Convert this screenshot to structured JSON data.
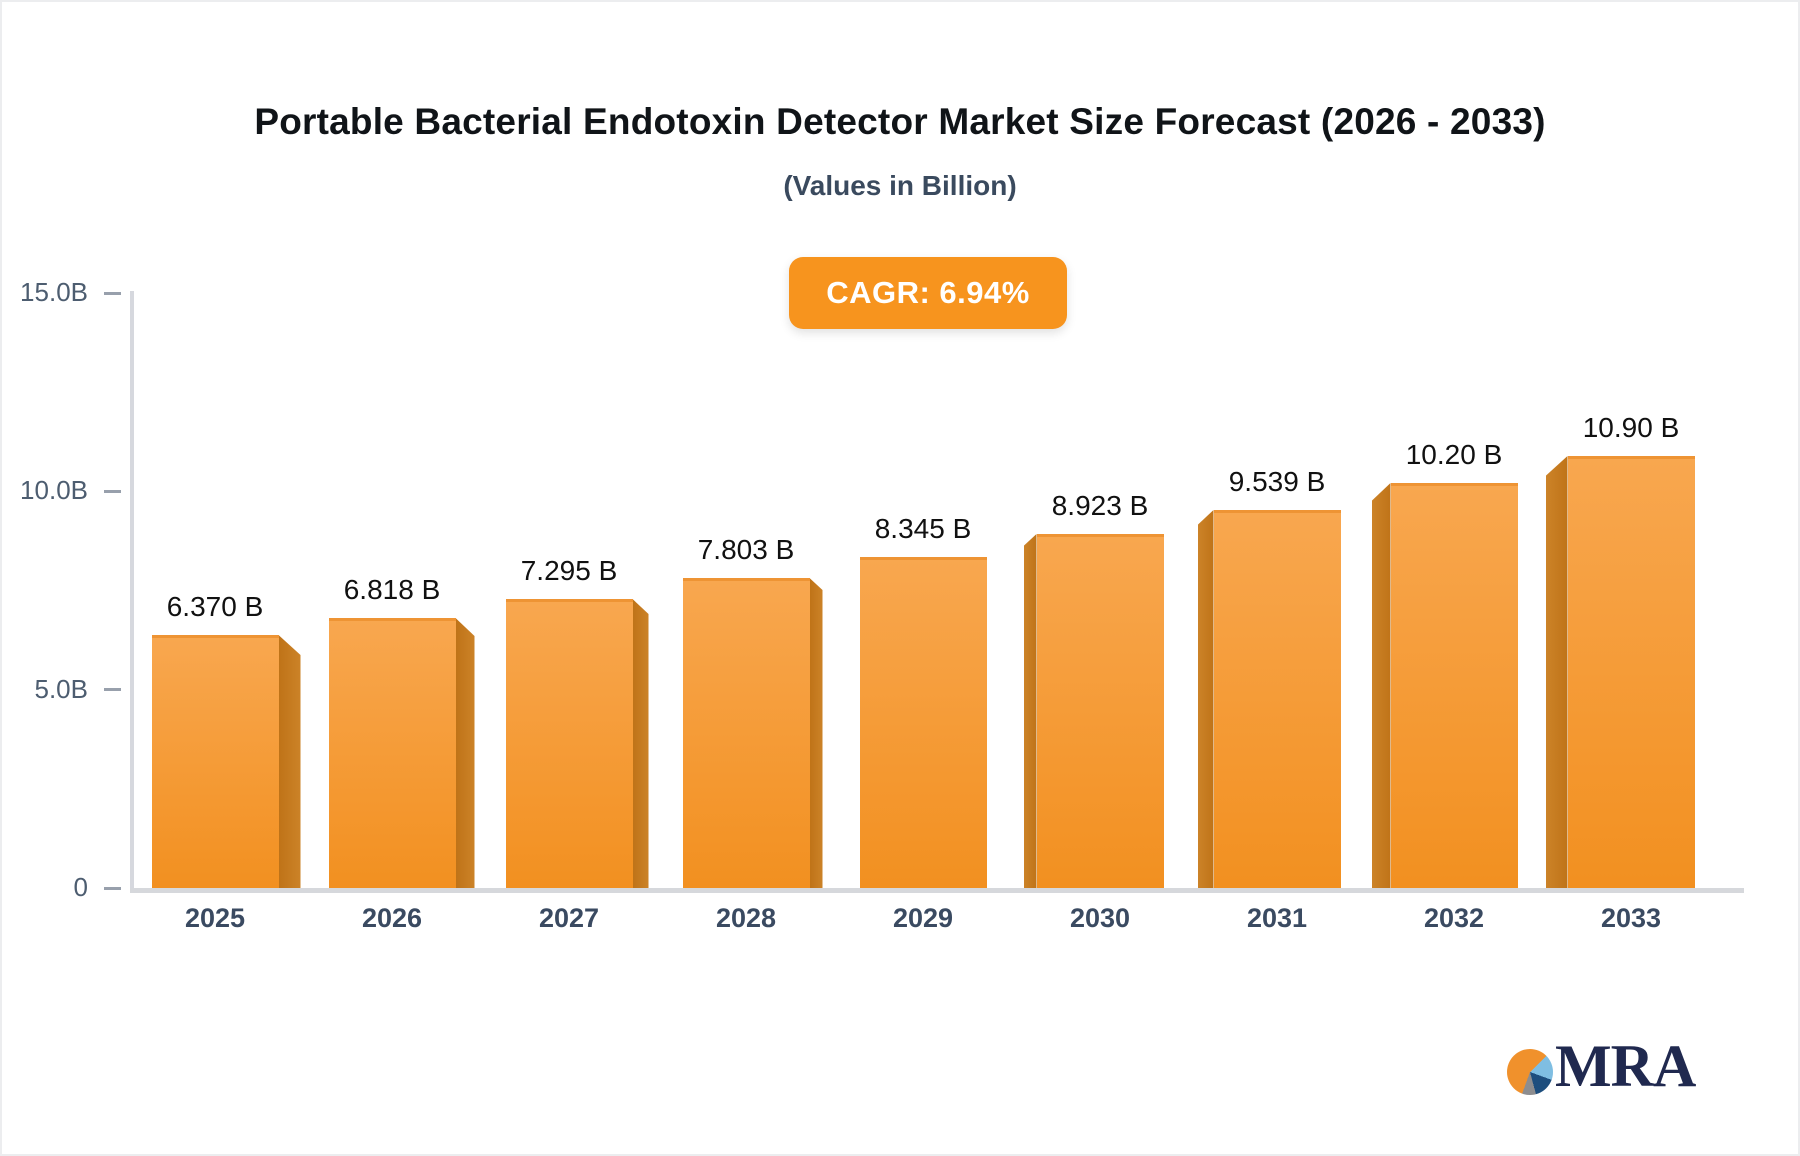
{
  "header": {
    "title": "Portable Bacterial Endotoxin Detector Market Size Forecast (2026 - 2033)",
    "subtitle": "(Values in Billion)"
  },
  "badge": {
    "label": "CAGR: 6.94%",
    "color": "#F7941E"
  },
  "chart_data": {
    "type": "bar",
    "title": "Portable Bacterial Endotoxin Detector Market Size Forecast (2026 - 2033)",
    "subtitle": "(Values in Billion)",
    "categories": [
      "2025",
      "2026",
      "2027",
      "2028",
      "2029",
      "2030",
      "2031",
      "2032",
      "2033"
    ],
    "values": [
      6.37,
      6.818,
      7.295,
      7.803,
      8.345,
      8.923,
      9.539,
      10.2,
      10.9
    ],
    "bar_labels": [
      "6.370 B",
      "6.818 B",
      "7.295 B",
      "7.803 B",
      "8.345 B",
      "8.923 B",
      "9.539 B",
      "10.20 B",
      "10.90 B"
    ],
    "xlabel": "",
    "ylabel": "",
    "ylim": [
      0,
      15
    ],
    "yticks": [
      {
        "label": "15.0B",
        "value": 15
      },
      {
        "label": "10.0B",
        "value": 10
      },
      {
        "label": "5.0B",
        "value": 5
      },
      {
        "label": "0",
        "value": 0
      }
    ],
    "grid": false,
    "legend": false,
    "cagr": "6.94%",
    "colors": {
      "bar_top": "#F8A74F",
      "bar_bottom": "#F29020",
      "bar_edge": "#EE9434",
      "bar_side_dark": "#BF7318",
      "bar_side_light": "#CC8328",
      "axis": "#D6D8DC",
      "tick": "#98A0AC",
      "ytick_text": "#4D5D70",
      "xtick_text": "#3A4A61",
      "value_text": "#111111"
    }
  },
  "logo": {
    "text": "MRA",
    "pie_colors": {
      "orange": "#F0912C",
      "light_blue": "#7FBEE2",
      "navy": "#1D4E7E",
      "gray": "#8D8D8F"
    },
    "text_color": "#20294F"
  }
}
